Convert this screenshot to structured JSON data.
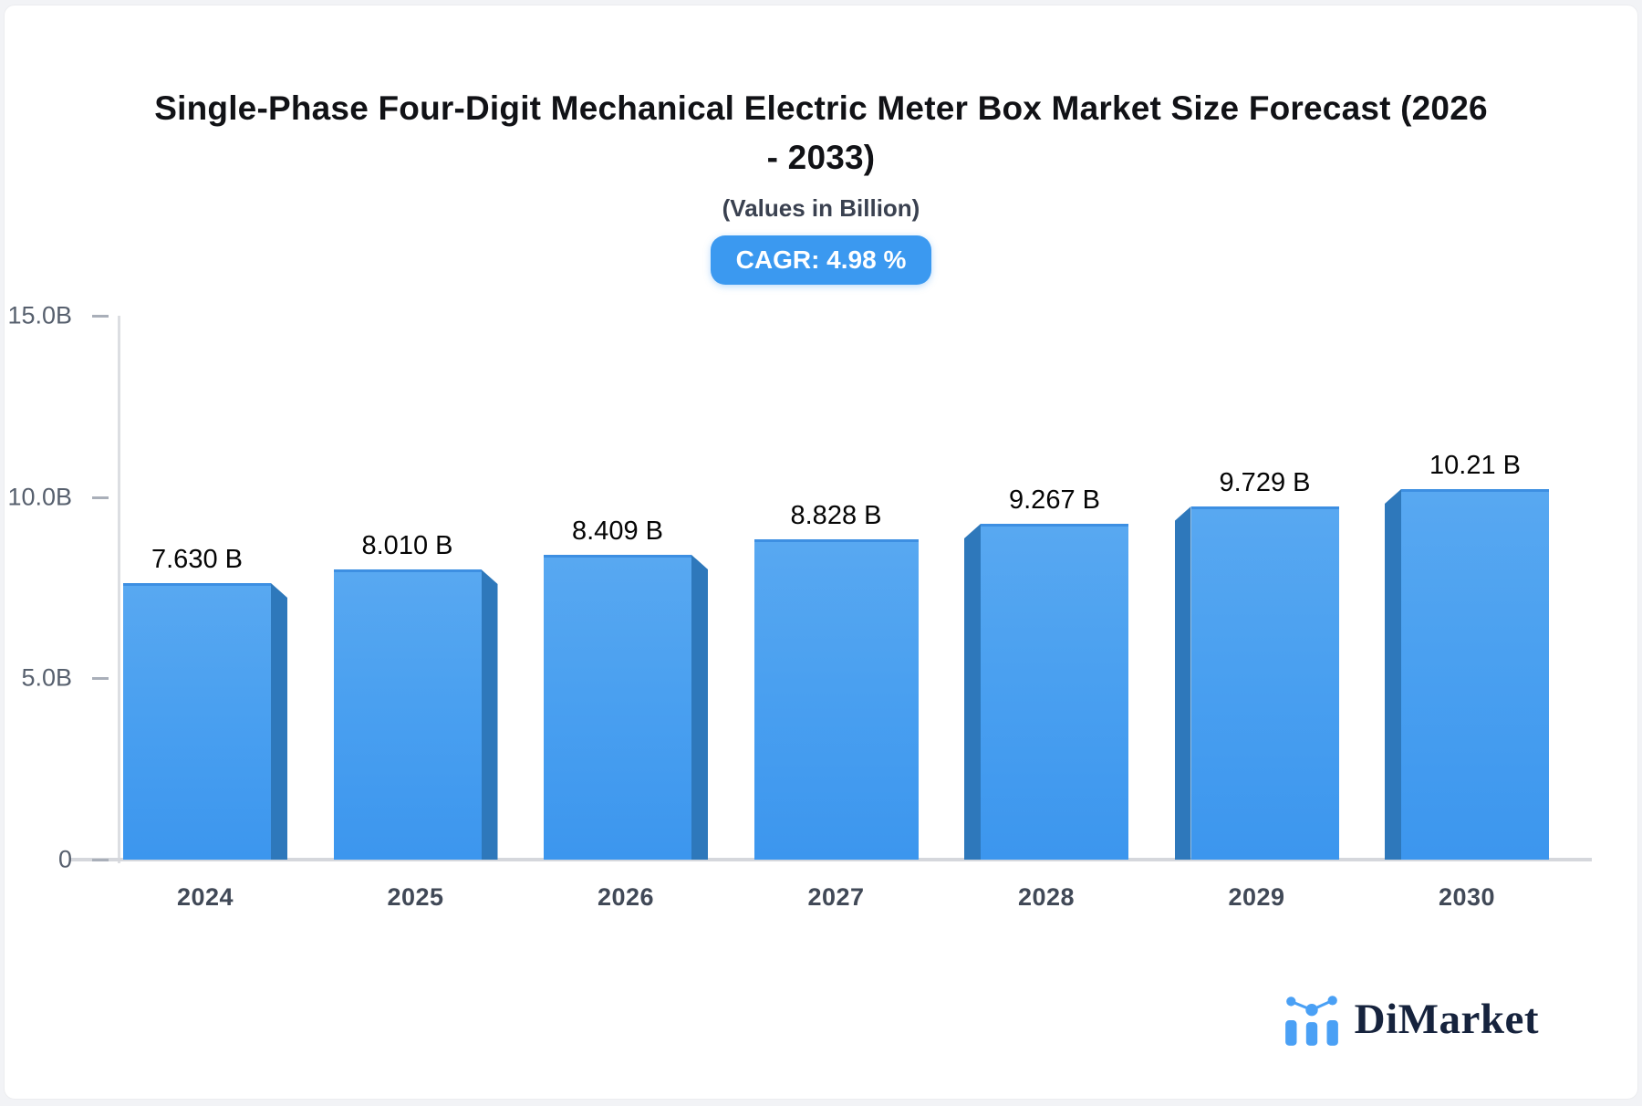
{
  "header": {
    "title_line1": "Single-Phase Four-Digit Mechanical Electric Meter Box Market Size Forecast (2026",
    "title_line2": "- 2033)",
    "subtitle": "(Values in Billion)",
    "cagr_badge": "CAGR: 4.98 %"
  },
  "chart_data": {
    "type": "bar",
    "title": "Single-Phase Four-Digit Mechanical Electric Meter Box Market Size Forecast (2026 - 2033)",
    "subtitle": "(Values in Billion)",
    "annotation": "CAGR: 4.98 %",
    "categories": [
      "2024",
      "2025",
      "2026",
      "2027",
      "2028",
      "2029",
      "2030"
    ],
    "values": [
      7.63,
      8.01,
      8.409,
      8.828,
      9.267,
      9.729,
      10.21
    ],
    "value_labels": [
      "7.630 B",
      "8.010 B",
      "8.409 B",
      "8.828 B",
      "9.267 B",
      "9.729 B",
      "10.21 B"
    ],
    "ylabel": "",
    "xlabel": "",
    "ylim": [
      0,
      15
    ],
    "yticks": [
      {
        "label": "15.0B",
        "value": 15
      },
      {
        "label": "10.0B",
        "value": 10
      },
      {
        "label": "5.0B",
        "value": 5
      },
      {
        "label": "0",
        "value": 0
      }
    ],
    "grid": false,
    "legend": false,
    "style_3d": true,
    "colors": {
      "bar_front_top": "#58a8f1",
      "bar_front_bottom": "#3c96ee",
      "bar_side": "#2e78bb",
      "bar_top_edge": "#3d8fe2",
      "axis": "#d5d7dc",
      "badge": "#3b99f0"
    }
  },
  "footer": {
    "brand": "DiMarket",
    "logo_icon": "bar-line-chart-logo",
    "brand_color": "#16233d",
    "icon_color": "#4aa0f5"
  }
}
